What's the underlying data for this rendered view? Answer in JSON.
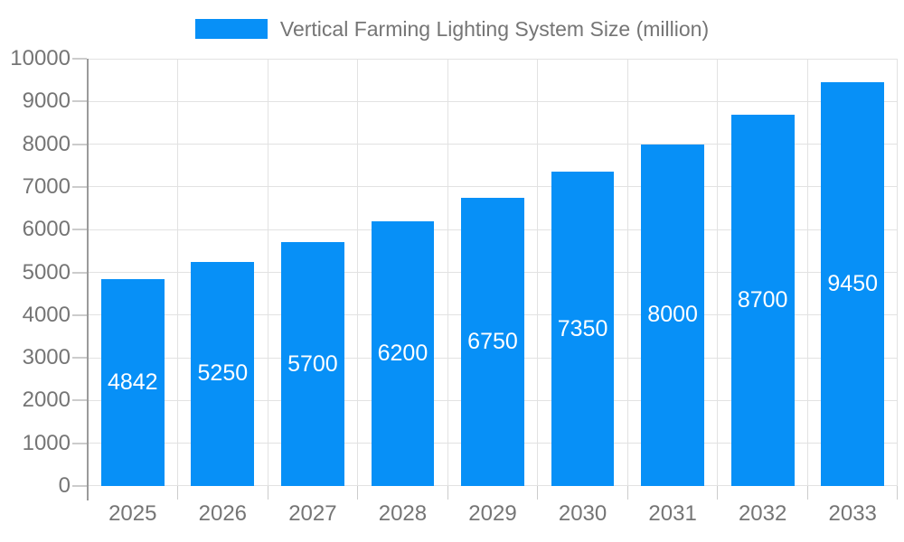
{
  "chart_data": {
    "type": "bar",
    "title": "Vertical Farming Lighting System Size (million)",
    "xlabel": "",
    "ylabel": "",
    "categories": [
      "2025",
      "2026",
      "2027",
      "2028",
      "2029",
      "2030",
      "2031",
      "2032",
      "2033"
    ],
    "values": [
      4842,
      5250,
      5700,
      6200,
      6750,
      7350,
      8000,
      8700,
      9450
    ],
    "ylim": [
      0,
      10000
    ],
    "yticks": [
      0,
      1000,
      2000,
      3000,
      4000,
      5000,
      6000,
      7000,
      8000,
      9000,
      10000
    ],
    "grid": true,
    "legend_position": "top",
    "colors": {
      "bar": "#0790f7",
      "bar_label": "#ffffff",
      "axis_text": "#757575",
      "gridline": "#e2e2e2",
      "axis_line": "#9a9a9a",
      "tick": "#cccccc"
    }
  }
}
